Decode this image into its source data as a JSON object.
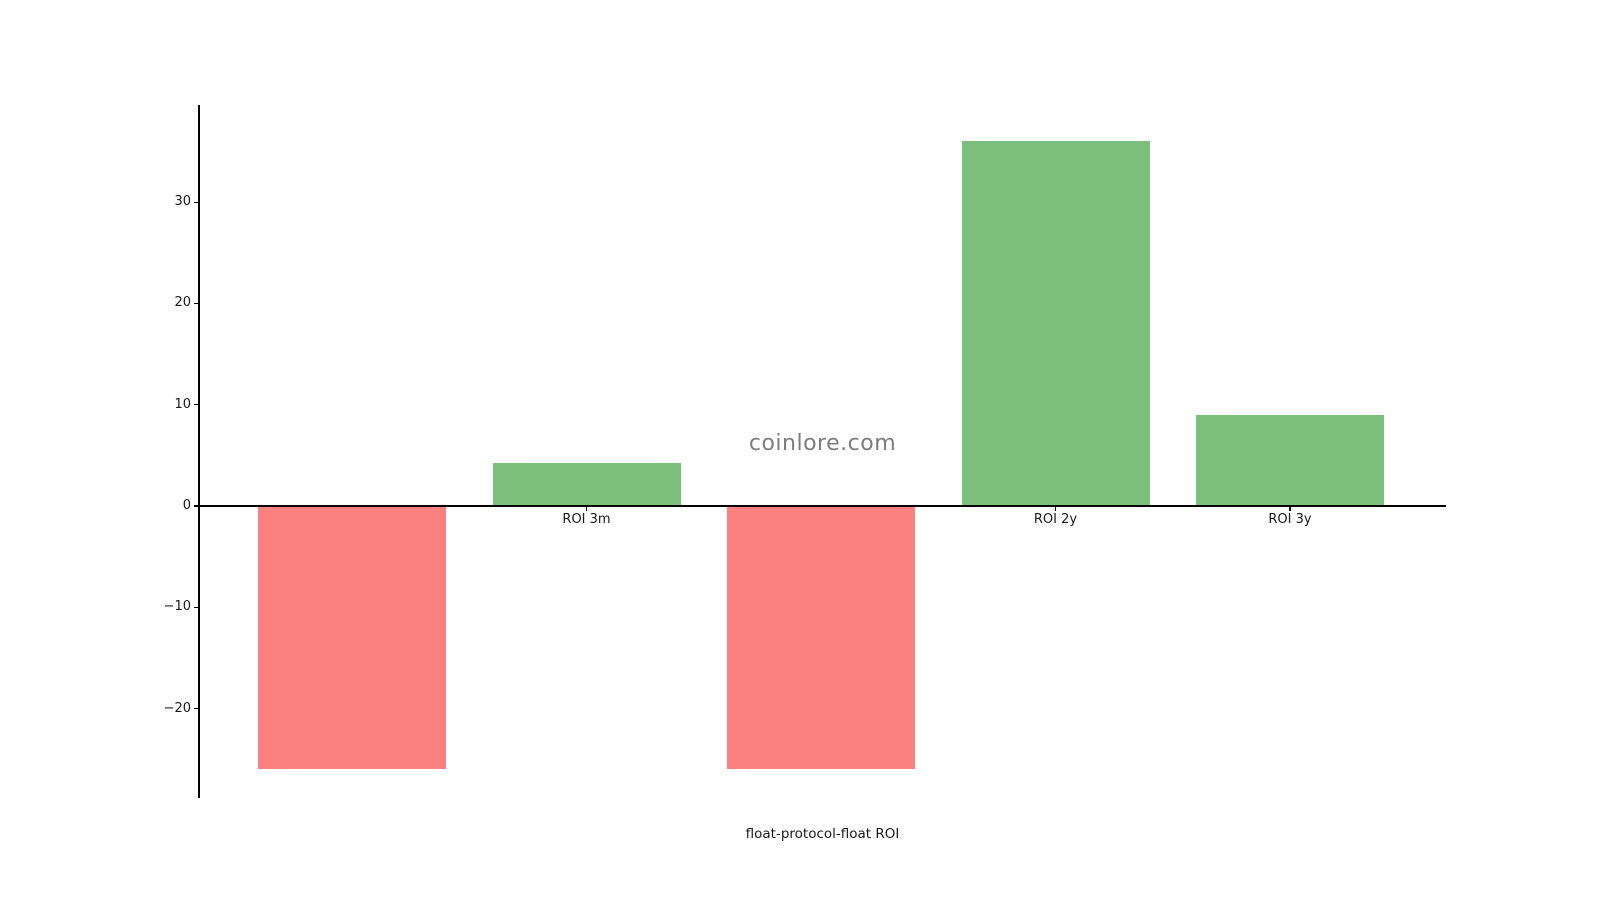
{
  "page": {
    "background_color": "#ffffff",
    "axis_color": "#000000",
    "text_color": "#1a1a1a",
    "watermark_color": "#7d7d7d"
  },
  "chart_data": {
    "type": "bar",
    "title": "float-protocol-float ROI",
    "watermark": "coinlore.com",
    "categories": [
      "",
      "ROI 3m",
      "",
      "ROI 2y",
      "ROI 3y"
    ],
    "values": [
      -26,
      4.2,
      -26,
      36,
      9
    ],
    "yticks": [
      -20,
      -10,
      0,
      10,
      20,
      30
    ],
    "ylim": [
      -28.8,
      39.6
    ],
    "xlabel": "",
    "ylabel": "",
    "grid": false,
    "legend": "none",
    "bar_colors": {
      "positive": "#7cbe7c",
      "negative": "#fb8181"
    }
  }
}
